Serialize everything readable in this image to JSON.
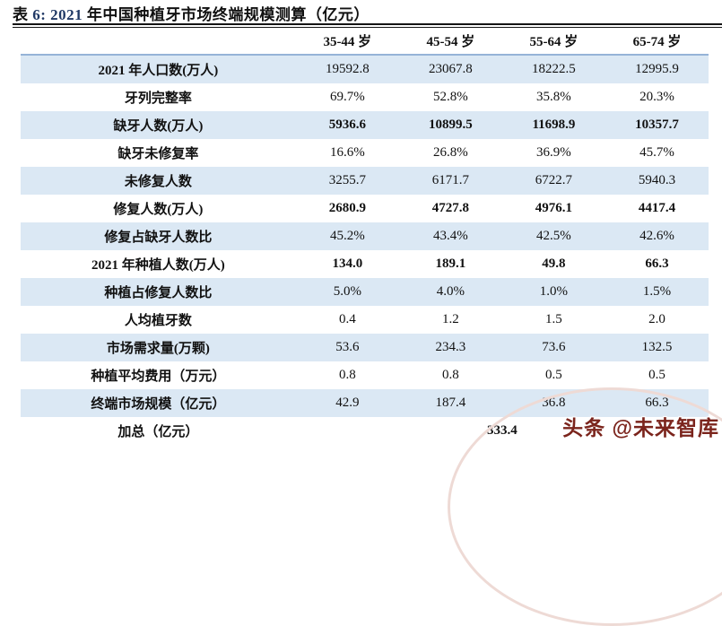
{
  "title": {
    "part1": "表 ",
    "part2": "6: 2021 ",
    "part3": "年中国种植牙市场终端规模测算（亿元）"
  },
  "colors": {
    "stripe_blue": "#dbe8f4",
    "header_underline_blue": "#95b3d7",
    "title_number_navy": "#1f3864",
    "watermark_maroon": "#7b241c"
  },
  "table": {
    "columns": [
      "35-44 岁",
      "45-54 岁",
      "55-64 岁",
      "65-74 岁"
    ],
    "rows": [
      {
        "label": "2021 年人口数(万人)",
        "values": [
          "19592.8",
          "23067.8",
          "18222.5",
          "12995.9"
        ]
      },
      {
        "label": "牙列完整率",
        "values": [
          "69.7%",
          "52.8%",
          "35.8%",
          "20.3%"
        ]
      },
      {
        "label": "缺牙人数(万人)",
        "values": [
          "5936.6",
          "10899.5",
          "11698.9",
          "10357.7"
        ]
      },
      {
        "label": "缺牙未修复率",
        "values": [
          "16.6%",
          "26.8%",
          "36.9%",
          "45.7%"
        ]
      },
      {
        "label": "未修复人数",
        "values": [
          "3255.7",
          "6171.7",
          "6722.7",
          "5940.3"
        ]
      },
      {
        "label": "修复人数(万人)",
        "values": [
          "2680.9",
          "4727.8",
          "4976.1",
          "4417.4"
        ]
      },
      {
        "label": "修复占缺牙人数比",
        "values": [
          "45.2%",
          "43.4%",
          "42.5%",
          "42.6%"
        ]
      },
      {
        "label": "2021 年种植人数(万人)",
        "values": [
          "134.0",
          "189.1",
          "49.8",
          "66.3"
        ]
      },
      {
        "label": "种植占修复人数比",
        "values": [
          "5.0%",
          "4.0%",
          "1.0%",
          "1.5%"
        ]
      },
      {
        "label": "人均植牙数",
        "values": [
          "0.4",
          "1.2",
          "1.5",
          "2.0"
        ]
      },
      {
        "label": "市场需求量(万颗)",
        "values": [
          "53.6",
          "234.3",
          "73.6",
          "132.5"
        ]
      },
      {
        "label": "种植平均费用（万元）",
        "values": [
          "0.8",
          "0.8",
          "0.5",
          "0.5"
        ]
      },
      {
        "label": "终端市场规模（亿元）",
        "values": [
          "42.9",
          "187.4",
          "36.8",
          "66.3"
        ]
      }
    ],
    "total_row": {
      "label": "加总（亿元）",
      "value": "333.4"
    }
  },
  "watermark": {
    "text": "头条 @未来智库"
  },
  "chart_data": {
    "type": "table",
    "title": "表 6: 2021 年中国种植牙市场终端规模测算（亿元）",
    "categories": [
      "35-44 岁",
      "45-54 岁",
      "55-64 岁",
      "65-74 岁"
    ],
    "series": [
      {
        "name": "2021 年人口数(万人)",
        "values": [
          19592.8,
          23067.8,
          18222.5,
          12995.9
        ]
      },
      {
        "name": "牙列完整率",
        "values": [
          "69.7%",
          "52.8%",
          "35.8%",
          "20.3%"
        ]
      },
      {
        "name": "缺牙人数(万人)",
        "values": [
          5936.6,
          10899.5,
          11698.9,
          10357.7
        ]
      },
      {
        "name": "缺牙未修复率",
        "values": [
          "16.6%",
          "26.8%",
          "36.9%",
          "45.7%"
        ]
      },
      {
        "name": "未修复人数",
        "values": [
          3255.7,
          6171.7,
          6722.7,
          5940.3
        ]
      },
      {
        "name": "修复人数(万人)",
        "values": [
          2680.9,
          4727.8,
          4976.1,
          4417.4
        ]
      },
      {
        "name": "修复占缺牙人数比",
        "values": [
          "45.2%",
          "43.4%",
          "42.5%",
          "42.6%"
        ]
      },
      {
        "name": "2021 年种植人数(万人)",
        "values": [
          134.0,
          189.1,
          49.8,
          66.3
        ]
      },
      {
        "name": "种植占修复人数比",
        "values": [
          "5.0%",
          "4.0%",
          "1.0%",
          "1.5%"
        ]
      },
      {
        "name": "人均植牙数",
        "values": [
          0.4,
          1.2,
          1.5,
          2.0
        ]
      },
      {
        "name": "市场需求量(万颗)",
        "values": [
          53.6,
          234.3,
          73.6,
          132.5
        ]
      },
      {
        "name": "种植平均费用（万元）",
        "values": [
          0.8,
          0.8,
          0.5,
          0.5
        ]
      },
      {
        "name": "终端市场规模（亿元）",
        "values": [
          42.9,
          187.4,
          36.8,
          66.3
        ]
      },
      {
        "name": "加总（亿元）",
        "values": [
          333.4
        ]
      }
    ]
  }
}
